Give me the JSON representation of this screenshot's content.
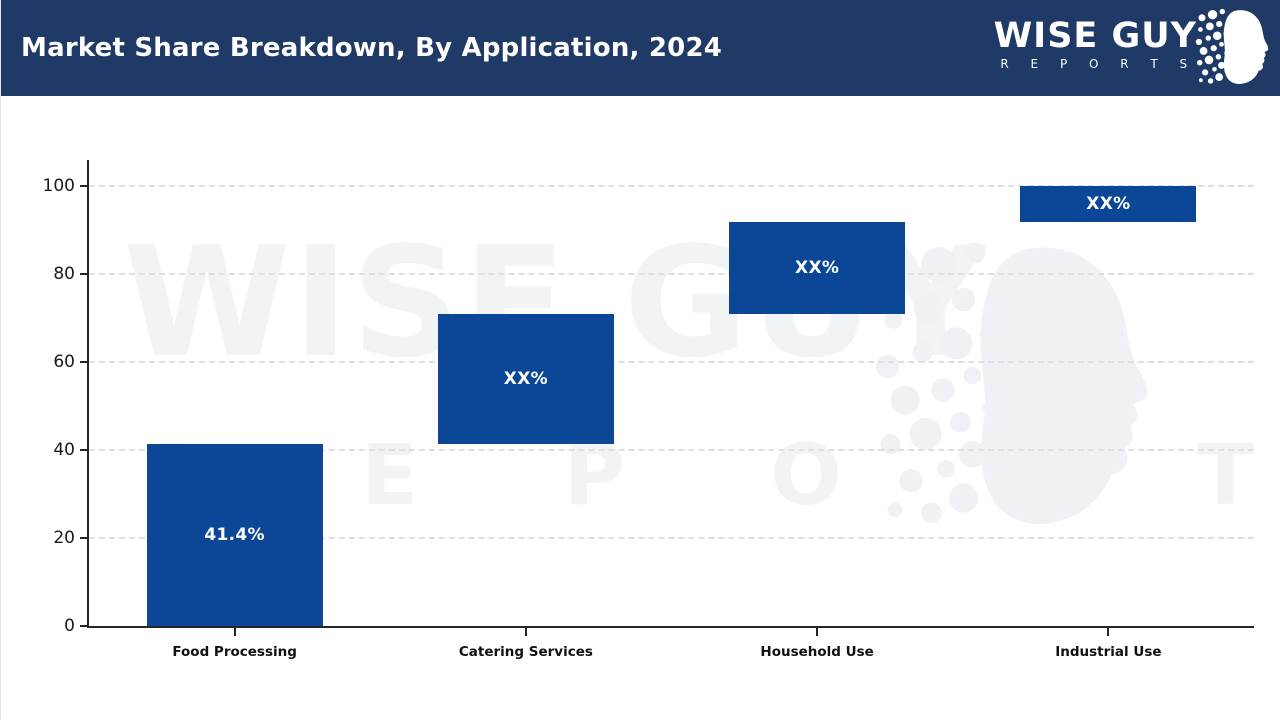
{
  "header": {
    "title": "Market Share Breakdown, By Application, 2024",
    "logo_line1": "WISE GUY",
    "logo_line2": "R E P O R T S"
  },
  "watermark": {
    "line1": "WISE GUY",
    "line2": "R E P O R T S"
  },
  "colors": {
    "header_bg": "#1f3a66",
    "bar": "#0b4796",
    "bar_label": "#ffffff",
    "grid": "#dfdfdf",
    "axis": "#262626",
    "watermark": "#f2f3f5"
  },
  "chart_data": {
    "type": "bar",
    "variant": "waterfall",
    "title": "Market Share Breakdown, By Application, 2024",
    "categories": [
      "Food Processing",
      "Catering Services",
      "Household Use",
      "Industrial Use"
    ],
    "segments": [
      {
        "category": "Food Processing",
        "start": 0,
        "end": 41.4,
        "label": "41.4%"
      },
      {
        "category": "Catering Services",
        "start": 41.4,
        "end": 71,
        "label": "XX%"
      },
      {
        "category": "Household Use",
        "start": 71,
        "end": 92,
        "label": "XX%"
      },
      {
        "category": "Industrial Use",
        "start": 92,
        "end": 100,
        "label": "XX%"
      }
    ],
    "xlabel": "",
    "ylabel": "",
    "yticks": [
      0,
      20,
      40,
      60,
      80,
      100
    ],
    "ylim": [
      0,
      106
    ],
    "grid": "horizontal-dashed",
    "legend": "none"
  }
}
